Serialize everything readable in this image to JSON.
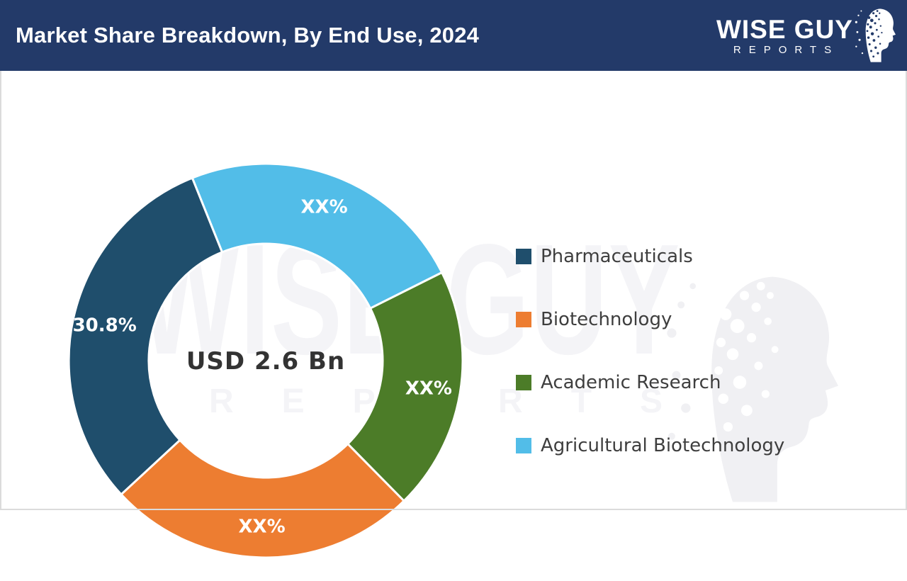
{
  "header": {
    "title": "Market Share Breakdown, By End Use, 2024",
    "logo": {
      "line1": "WISE GUY",
      "line2": "REPORTS"
    }
  },
  "watermark": {
    "line1": "WISE GUY",
    "line2": "REPORTS"
  },
  "chart_data": {
    "type": "pie",
    "subtype": "donut",
    "title": "Market Share Breakdown, By End Use, 2024",
    "center_label": "USD 2.6 Bn",
    "start_angle_deg": -21.9,
    "direction": "clockwise",
    "legend_position": "right",
    "series": [
      {
        "name": "Pharmaceuticals",
        "value_pct": 30.8,
        "label": "30.8%",
        "color": "#1F4E6C"
      },
      {
        "name": "Biotechnology",
        "value_pct": 25.5,
        "label": "XX%",
        "color": "#ED7D31"
      },
      {
        "name": "Academic Research",
        "value_pct": 20.0,
        "label": "XX%",
        "color": "#4C7C28"
      },
      {
        "name": "Agricultural Biotechnology",
        "value_pct": 23.7,
        "label": "XX%",
        "color": "#52BDE8"
      }
    ],
    "draw_order": [
      "Agricultural Biotechnology",
      "Academic Research",
      "Biotechnology",
      "Pharmaceuticals"
    ]
  },
  "legend": {
    "items": [
      {
        "label": "Pharmaceuticals",
        "color": "#1F4E6C"
      },
      {
        "label": "Biotechnology",
        "color": "#ED7D31"
      },
      {
        "label": "Academic Research",
        "color": "#4C7C28"
      },
      {
        "label": "Agricultural Biotechnology",
        "color": "#52BDE8"
      }
    ]
  },
  "colors": {
    "header_bg": "#233A69",
    "frame_border": "#DBDBDB",
    "watermark": "#F4F4F7",
    "center_text": "#333333",
    "legend_text": "#3E3E3E"
  }
}
